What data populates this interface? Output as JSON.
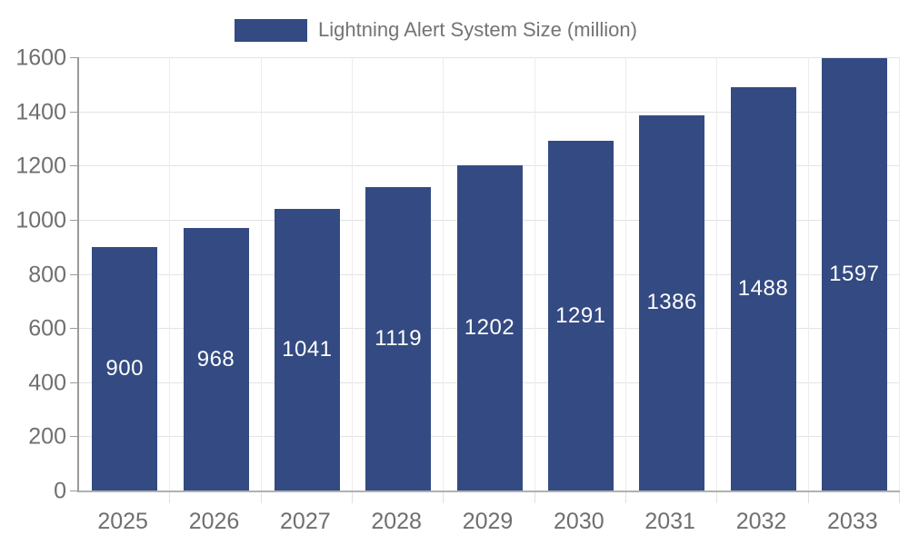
{
  "legend": {
    "label": "Lightning Alert System Size (million)"
  },
  "colors": {
    "bar": "#344A82",
    "axis_text": "#6F6F6F",
    "legend_text": "#747474",
    "value_label": "#FFFFFF",
    "grid_line": "#E3E3E3",
    "axis_line": "#9A9A9A",
    "background": "#FFFFFF"
  },
  "chart_data": {
    "type": "bar",
    "title": "Lightning Alert System Size (million)",
    "categories": [
      "2025",
      "2026",
      "2027",
      "2028",
      "2029",
      "2030",
      "2031",
      "2032",
      "2033"
    ],
    "values": [
      900,
      968,
      1041,
      1119,
      1202,
      1291,
      1386,
      1488,
      1597
    ],
    "xlabel": "",
    "ylabel": "",
    "ylim": [
      0,
      1600
    ],
    "yticks": [
      0,
      200,
      400,
      600,
      800,
      1000,
      1200,
      1400,
      1600
    ],
    "grid": true,
    "legend_position": "top-center",
    "value_label_position": "inside-center",
    "bar_color": "#344A82"
  }
}
